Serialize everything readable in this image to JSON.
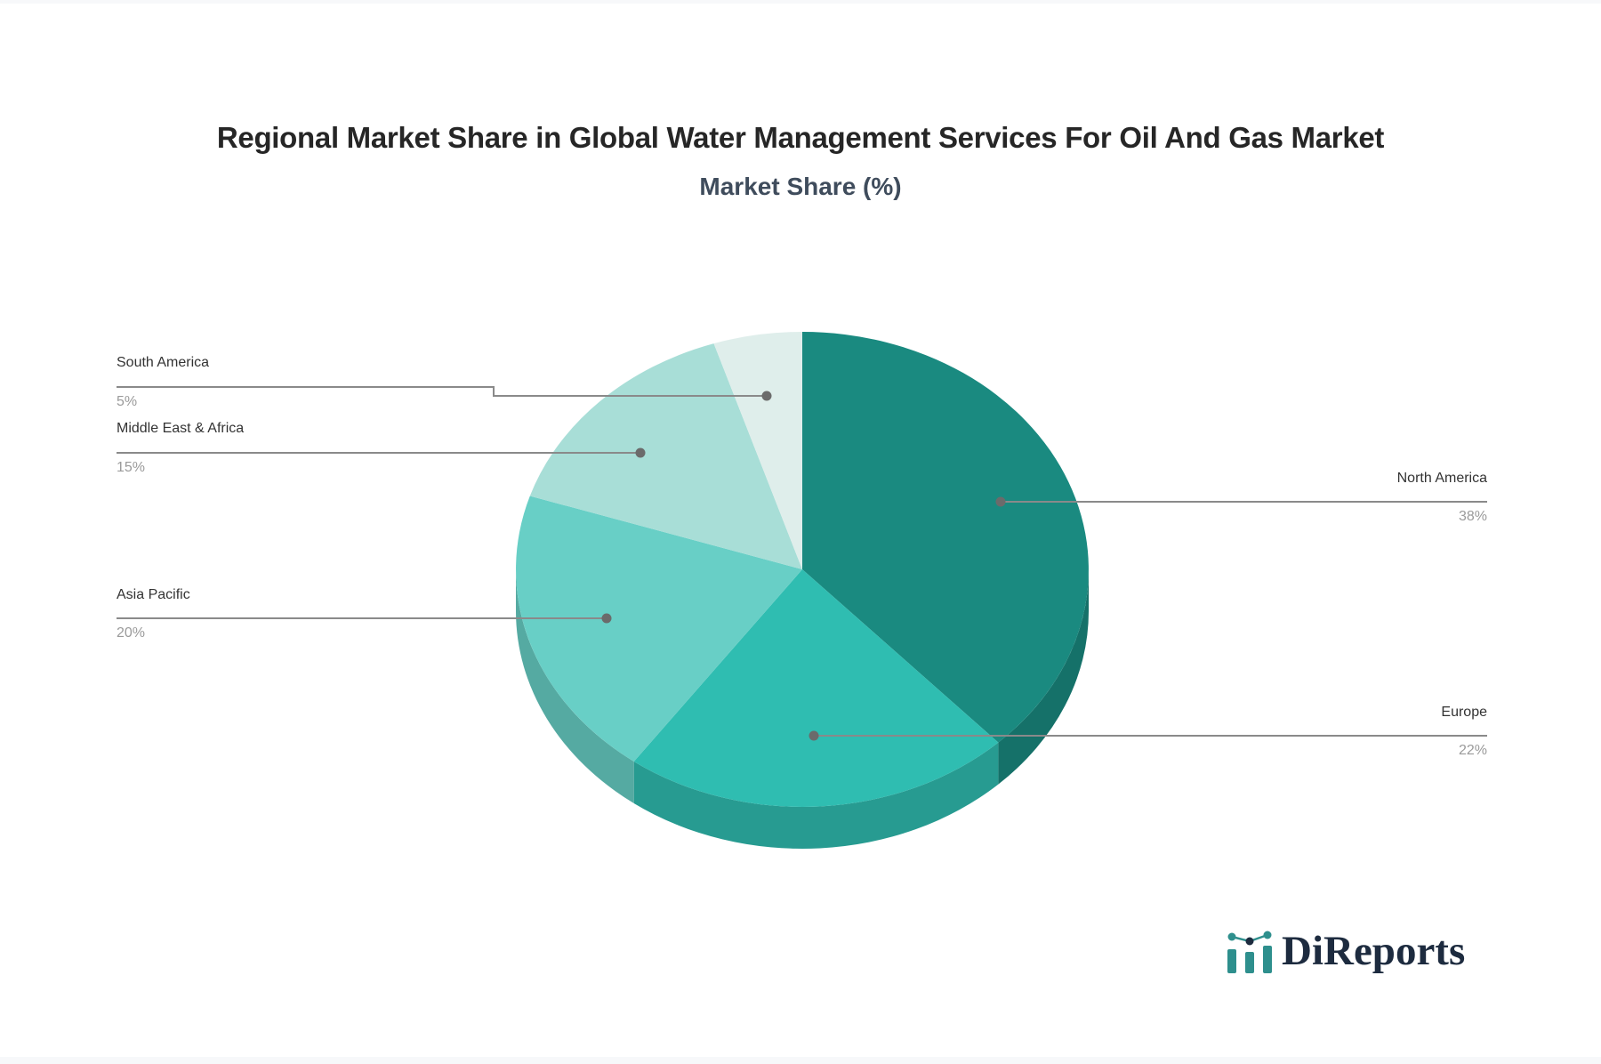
{
  "page": {
    "background": "#ffffff",
    "frame_strip_color": "#f7f8fa"
  },
  "header": {
    "title": "Regional Market Share in Global Water Management Services For Oil And Gas Market",
    "subtitle": "Market Share (%)"
  },
  "chart_data": {
    "type": "pie",
    "style": "3d-depth",
    "title": "Regional Market Share in Global Water Management Services For Oil And Gas Market",
    "subtitle": "Market Share (%)",
    "unit": "%",
    "total": 100,
    "start_angle_deg": 0,
    "direction": "clockwise",
    "legend_position": "callout-labels",
    "slices": [
      {
        "label": "North America",
        "value": 38,
        "display": "38%",
        "color": "#1a8a80",
        "callout_side": "right"
      },
      {
        "label": "Europe",
        "value": 22,
        "display": "22%",
        "color": "#2fbdb1",
        "callout_side": "right"
      },
      {
        "label": "Asia Pacific",
        "value": 20,
        "display": "20%",
        "color": "#68cfc6",
        "callout_side": "left"
      },
      {
        "label": "Middle East & Africa",
        "value": 15,
        "display": "15%",
        "color": "#a8ded7",
        "callout_side": "left"
      },
      {
        "label": "South America",
        "value": 5,
        "display": "5%",
        "color": "#dfeeeb",
        "callout_side": "left"
      }
    ]
  },
  "styles": {
    "leader_line_color": "#8a8a8a",
    "dot_color": "#6b6b6b",
    "label_color": "#333333",
    "value_color": "#9a9a9a",
    "title_color": "#262626",
    "subtitle_color": "#3f4c5c",
    "depth_shade_factor": 0.82
  },
  "brand": {
    "name": "DiReports",
    "text_color": "#1d2b3f",
    "icon": "bar-chart-logo-icon",
    "icon_teal": "#2e8f8d",
    "icon_navy": "#1d2b3f"
  }
}
